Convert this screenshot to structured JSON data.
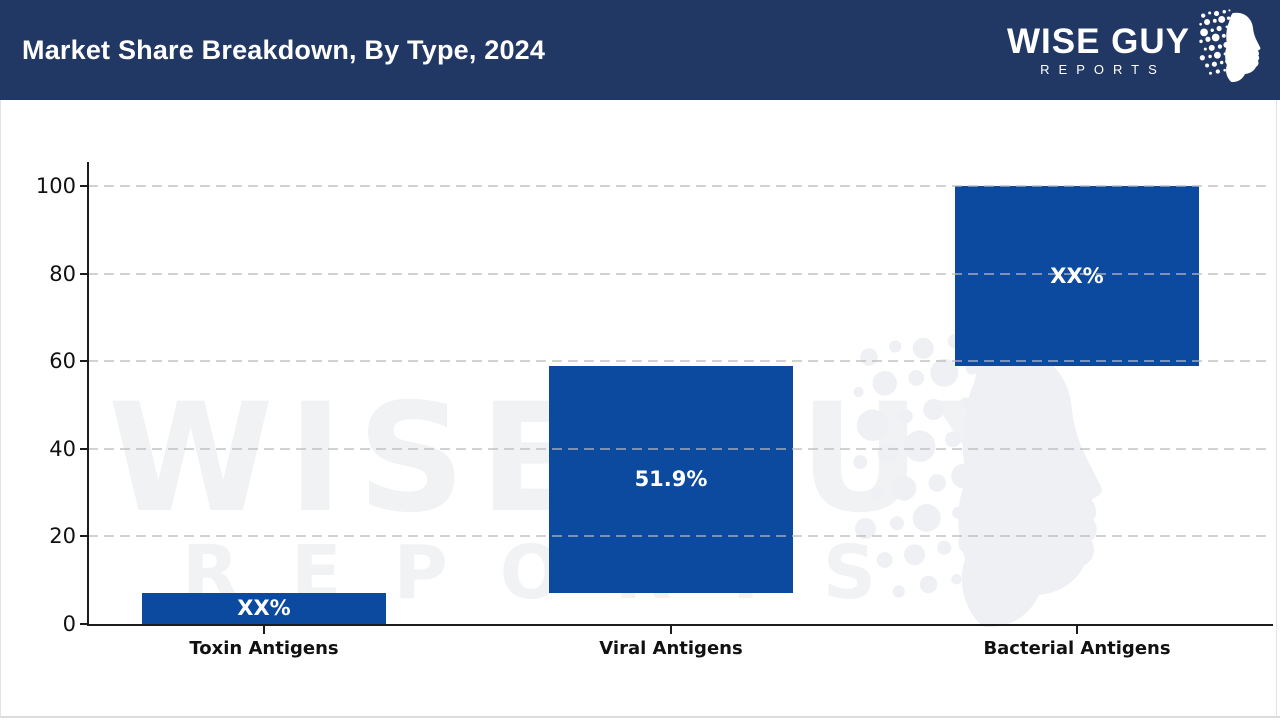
{
  "header": {
    "title": "Market Share Breakdown, By Type, 2024",
    "logo": {
      "brand_top": "WISE GUY",
      "brand_bottom": "REPORTS"
    }
  },
  "watermark": {
    "line1": "WISE GUY",
    "line2": "REPORTS"
  },
  "colors": {
    "header_bg": "#223864",
    "bar": "#0b4a9f",
    "value_label": "#ffffff",
    "watermark": "#f1f2f4",
    "grid": "#bdbdbd",
    "axis": "#1c1c1c"
  },
  "chart_data": {
    "type": "bar",
    "subtype": "waterfall",
    "title": "Market Share Breakdown, By Type, 2024",
    "categories": [
      "Toxin Antigens",
      "Viral Antigens",
      "Bacterial Antigens"
    ],
    "segments": [
      {
        "category": "Toxin Antigens",
        "start": 0,
        "end": 7.1,
        "label": "XX%"
      },
      {
        "category": "Viral Antigens",
        "start": 7.1,
        "end": 59,
        "label": "51.9%"
      },
      {
        "category": "Bacterial Antigens",
        "start": 59,
        "end": 100,
        "label": "XX%"
      }
    ],
    "yticks": [
      0,
      20,
      40,
      60,
      80,
      100
    ],
    "ylim": [
      0,
      105
    ],
    "xlabel": "",
    "ylabel": "",
    "grid": "horizontal-dashed-over-bars",
    "legend": "none"
  }
}
